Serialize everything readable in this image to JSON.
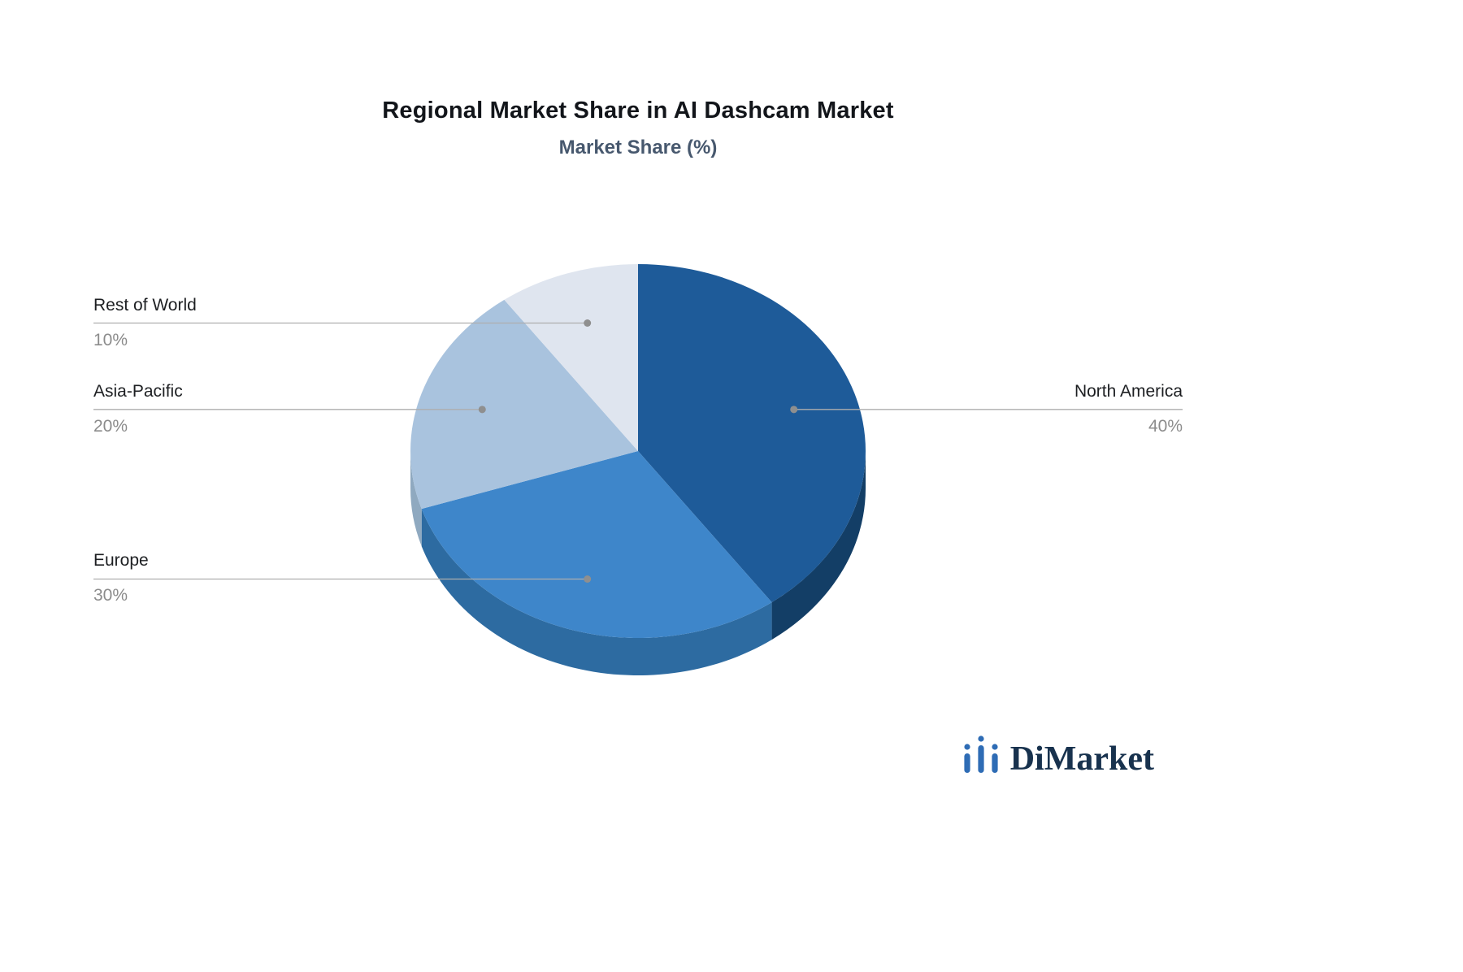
{
  "header": {
    "title": "Regional Market Share in AI Dashcam Market",
    "subtitle": "Market Share (%)"
  },
  "chart_data": {
    "type": "pie",
    "style": "3d",
    "title": "Regional Market Share in AI Dashcam Market",
    "subtitle": "Market Share (%)",
    "unit": "%",
    "direction": "clockwise",
    "start_angle_deg": 0,
    "legend": "none",
    "leader_line_color": "#aeaeae",
    "leader_dot_color": "#8f8f8f",
    "label_color": "#1d1f22",
    "value_color": "#8c8c8c",
    "segments": [
      {
        "label": "North America",
        "value": 40,
        "display_value": "40%",
        "color": "#1E5B99",
        "side_color": "#133E66",
        "label_side": "right"
      },
      {
        "label": "Europe",
        "value": 30,
        "display_value": "30%",
        "color": "#3E86CA",
        "side_color": "#2D6BA1",
        "label_side": "left"
      },
      {
        "label": "Asia-Pacific",
        "value": 20,
        "display_value": "20%",
        "color": "#A9C3DE",
        "side_color": "#8FA9C0",
        "label_side": "left"
      },
      {
        "label": "Rest of World",
        "value": 10,
        "display_value": "10%",
        "color": "#DFE5EF",
        "side_color": "#BCC8D8",
        "label_side": "left"
      }
    ]
  },
  "branding": {
    "logo_text": "DiMarket",
    "logo_icon": "bar-chart-icon",
    "text_color": "#18324e",
    "icon_color": "#2E6CB5"
  }
}
